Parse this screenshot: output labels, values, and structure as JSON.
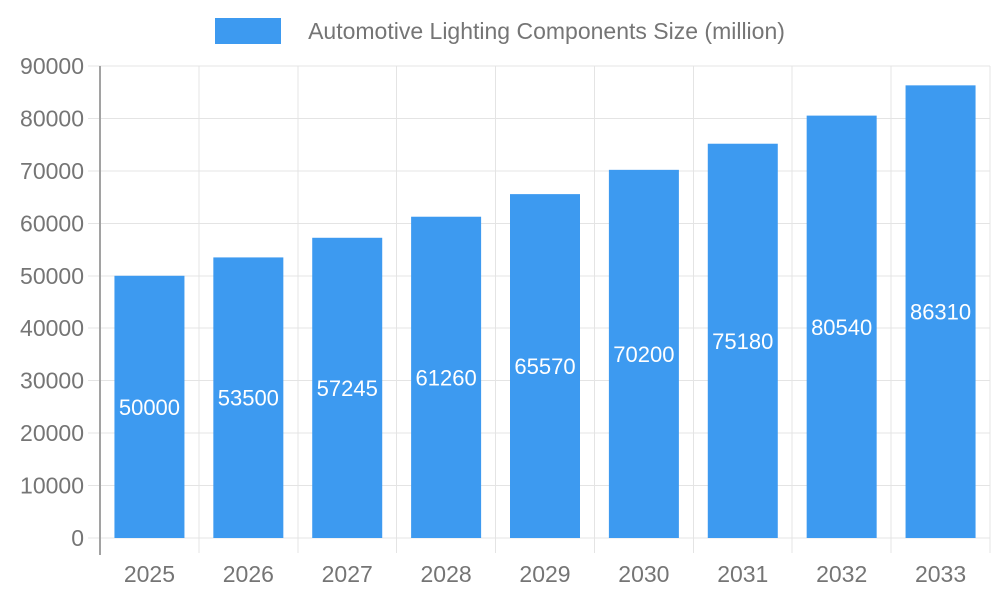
{
  "chart_data": {
    "type": "bar",
    "title": "Automotive Lighting Components Size (million)",
    "categories": [
      "2025",
      "2026",
      "2027",
      "2028",
      "2029",
      "2030",
      "2031",
      "2032",
      "2033"
    ],
    "values": [
      50000,
      53500,
      57245,
      61260,
      65570,
      70200,
      75180,
      80540,
      86310
    ],
    "series_name": "Automotive Lighting Components Size (million)",
    "xlabel": "",
    "ylabel": "",
    "ylim": [
      0,
      90000
    ],
    "ytick_step": 10000,
    "ytick_labels": [
      "0",
      "10000",
      "20000",
      "30000",
      "40000",
      "50000",
      "60000",
      "70000",
      "80000",
      "90000"
    ],
    "grid": true,
    "legend_position": "top",
    "bar_value_labels_inside": true,
    "colors": {
      "bar": "#3d9af0",
      "bar_value_text": "#ffffff",
      "axis_line": "#a2a2a2",
      "gridline": "#e4e4e4",
      "tick_text": "#757575",
      "legend_text": "#757575",
      "background": "#ffffff"
    }
  }
}
